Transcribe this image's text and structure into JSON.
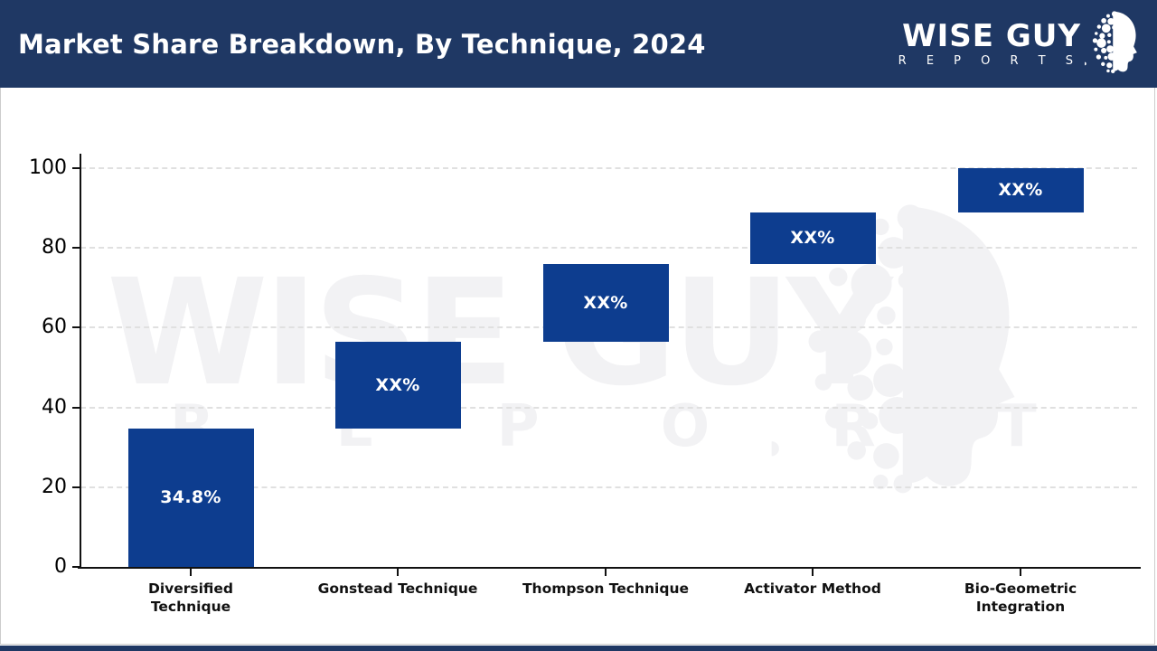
{
  "header": {
    "title": "Market Share Breakdown, By Technique, 2024",
    "logo": {
      "name": "WISE GUY",
      "tagline": "R E P O R T S"
    }
  },
  "watermark": {
    "big_text": "WISE GUY",
    "tagline": "R E P O R T S"
  },
  "colors": {
    "header_bg": "#1f3864",
    "bar": "#0d3d8f",
    "gridline": "#e0e0e0",
    "watermark": "#f2f2f4"
  },
  "chart_data": {
    "type": "bar",
    "subtype": "waterfall",
    "title": "Market Share Breakdown, By Technique, 2024",
    "categories": [
      "Diversified Technique",
      "Gonstead Technique",
      "Thompson Technique",
      "Activator Method",
      "Bio-Geometric Integration"
    ],
    "category_lines": [
      [
        "Diversified",
        "Technique"
      ],
      [
        "Gonstead Technique"
      ],
      [
        "Thompson Technique"
      ],
      [
        "Activator Method"
      ],
      [
        "Bio-Geometric",
        "Integration"
      ]
    ],
    "segments": [
      {
        "category": "Diversified Technique",
        "start": 0,
        "end": 34.8,
        "value": 34.8,
        "label": "34.8%"
      },
      {
        "category": "Gonstead Technique",
        "start": 34.8,
        "end": 56.5,
        "value": 21.7,
        "label": "XX%"
      },
      {
        "category": "Thompson Technique",
        "start": 56.5,
        "end": 76.0,
        "value": 19.5,
        "label": "XX%"
      },
      {
        "category": "Activator Method",
        "start": 76.0,
        "end": 88.9,
        "value": 12.9,
        "label": "XX%"
      },
      {
        "category": "Bio-Geometric Integration",
        "start": 88.9,
        "end": 100,
        "value": 11.1,
        "label": "XX%"
      }
    ],
    "yticks": [
      0,
      20,
      40,
      60,
      80,
      100
    ],
    "ylim": [
      0,
      103.6
    ],
    "xlabel": "",
    "ylabel": "",
    "grid": "horizontal-dashed",
    "legend": "none",
    "bar_color": "#0d3d8f"
  }
}
